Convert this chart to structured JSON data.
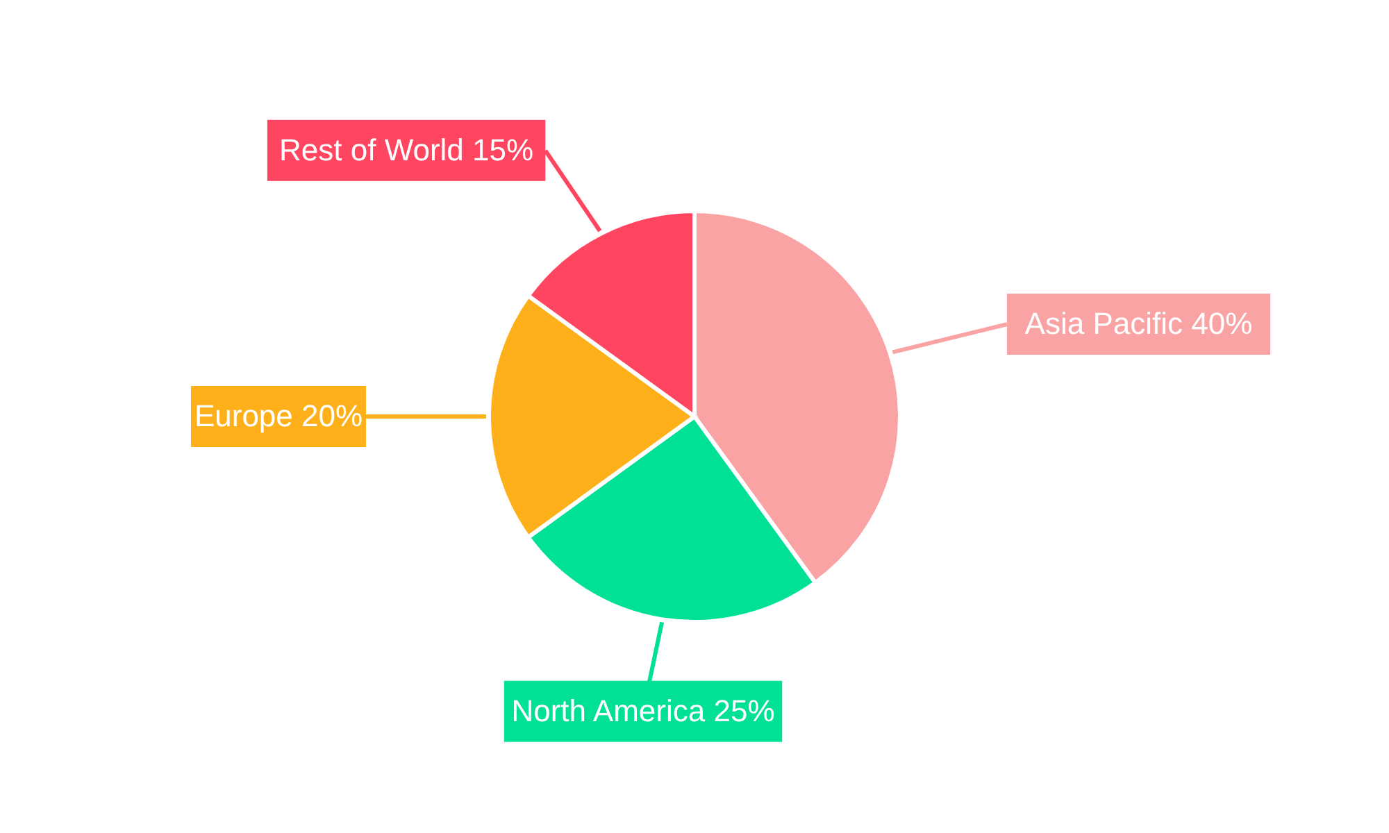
{
  "chart_data": {
    "type": "pie",
    "categories": [
      "Asia Pacific",
      "North America",
      "Europe",
      "Rest of World"
    ],
    "values": [
      40,
      25,
      20,
      15
    ],
    "value_labels": [
      "40%",
      "25%",
      "20%",
      "15%"
    ],
    "colors": [
      "#f9a3a4",
      "#00e096",
      "#fdb01a",
      "#ff4560"
    ]
  }
}
